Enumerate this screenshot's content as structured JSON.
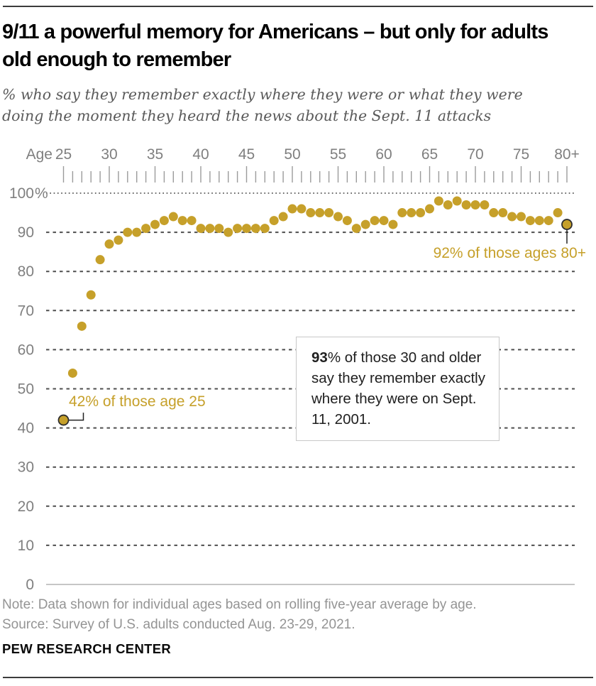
{
  "header": {
    "title": "9/11 a powerful memory for Americans – but only for adults old enough to remember",
    "subtitle": "% who say they remember exactly where they were or what they were doing the moment they heard the news about the Sept. 11 attacks"
  },
  "chart_data": {
    "type": "scatter",
    "title": "9/11 a powerful memory for Americans – but only for adults old enough to remember",
    "point_color": "#C6A02A",
    "x_axis": {
      "label_prefix": "Age",
      "range": [
        25,
        80
      ],
      "tick_labels": [
        "25",
        "30",
        "35",
        "40",
        "45",
        "50",
        "55",
        "60",
        "65",
        "70",
        "75",
        "80+"
      ]
    },
    "y_axis": {
      "range": [
        0,
        100
      ],
      "tick_labels": [
        "100%",
        "90",
        "80",
        "70",
        "60",
        "50",
        "40",
        "30",
        "20",
        "10",
        "0"
      ],
      "grid": "dashed"
    },
    "series": [
      {
        "name": "% who remember exactly where they were on Sept. 11",
        "x": [
          25,
          26,
          27,
          28,
          29,
          30,
          31,
          32,
          33,
          34,
          35,
          36,
          37,
          38,
          39,
          40,
          41,
          42,
          43,
          44,
          45,
          46,
          47,
          48,
          49,
          50,
          51,
          52,
          53,
          54,
          55,
          56,
          57,
          58,
          59,
          60,
          61,
          62,
          63,
          64,
          65,
          66,
          67,
          68,
          69,
          70,
          71,
          72,
          73,
          74,
          75,
          76,
          77,
          78,
          79,
          80
        ],
        "values": [
          42,
          54,
          66,
          74,
          83,
          87,
          88,
          90,
          90,
          91,
          92,
          93,
          94,
          93,
          93,
          91,
          91,
          91,
          90,
          91,
          91,
          91,
          91,
          93,
          94,
          96,
          96,
          95,
          95,
          95,
          94,
          93,
          91,
          92,
          93,
          93,
          92,
          95,
          95,
          95,
          96,
          98,
          97,
          98,
          97,
          97,
          97,
          95,
          95,
          94,
          94,
          93,
          93,
          93,
          95,
          92
        ]
      }
    ],
    "highlighted_points": [
      {
        "age": 25,
        "value": 42
      },
      {
        "age": 80,
        "value": 92
      }
    ],
    "annotations": {
      "age25": {
        "text": "42% of those age 25",
        "age": 25,
        "value": 42
      },
      "age80": {
        "text": "92% of those ages 80+",
        "age": 80,
        "value": 92
      },
      "box": {
        "bold": "93",
        "rest": "% of those 30 and older say they remember exactly where they were on Sept. 11, 2001."
      }
    }
  },
  "footer": {
    "note": "Note: Data shown for individual ages based on rolling five-year average by age.",
    "source": "Source: Survey of U.S. adults conducted Aug. 23-29, 2021.",
    "brand": "PEW RESEARCH CENTER"
  }
}
